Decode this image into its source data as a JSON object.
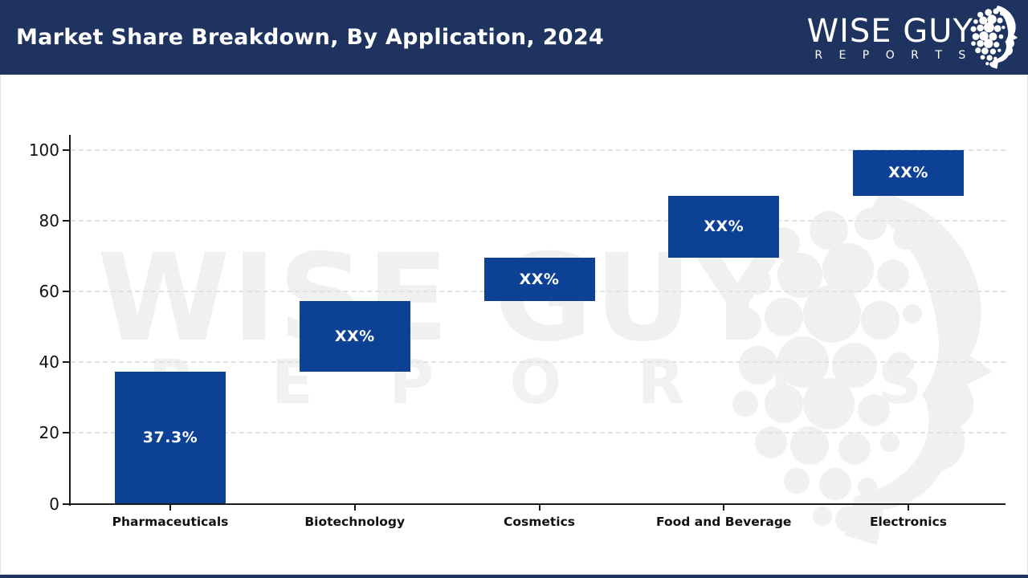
{
  "header": {
    "title": "Market Share Breakdown, By Application, 2024",
    "logo_line1": "WISE GUY",
    "logo_line2": "REPORTS"
  },
  "watermark": {
    "line1": "WISE GUY",
    "line2": "REPORTS"
  },
  "chart_data": {
    "type": "bar",
    "variant": "waterfall",
    "title": "Market Share Breakdown, By Application, 2024",
    "categories": [
      "Pharmaceuticals",
      "Biotechnology",
      "Cosmetics",
      "Food and Beverage",
      "Electronics"
    ],
    "segments": [
      {
        "category": "Pharmaceuticals",
        "start": 0,
        "end": 37.3,
        "value_label": "37.3%"
      },
      {
        "category": "Biotechnology",
        "start": 37.3,
        "end": 57.3,
        "value_label": "XX%"
      },
      {
        "category": "Cosmetics",
        "start": 57.3,
        "end": 69.5,
        "value_label": "XX%"
      },
      {
        "category": "Food and Beverage",
        "start": 69.5,
        "end": 87.0,
        "value_label": "XX%"
      },
      {
        "category": "Electronics",
        "start": 87.0,
        "end": 100.0,
        "value_label": "XX%"
      }
    ],
    "y_ticks": [
      0,
      20,
      40,
      60,
      80,
      100
    ],
    "ylim": [
      0,
      104
    ],
    "xlabel": "",
    "ylabel": "",
    "grid": "horizontal-dashed",
    "legend": "none",
    "bar_color": "#0c4196",
    "bar_label_color": "#ffffff"
  },
  "colors": {
    "header_bg": "#1f3360",
    "footer_bg": "#1f3360",
    "axis": "#1a1a1a",
    "gridline": "#e2e2e2",
    "watermark": "#f0f0f1"
  }
}
